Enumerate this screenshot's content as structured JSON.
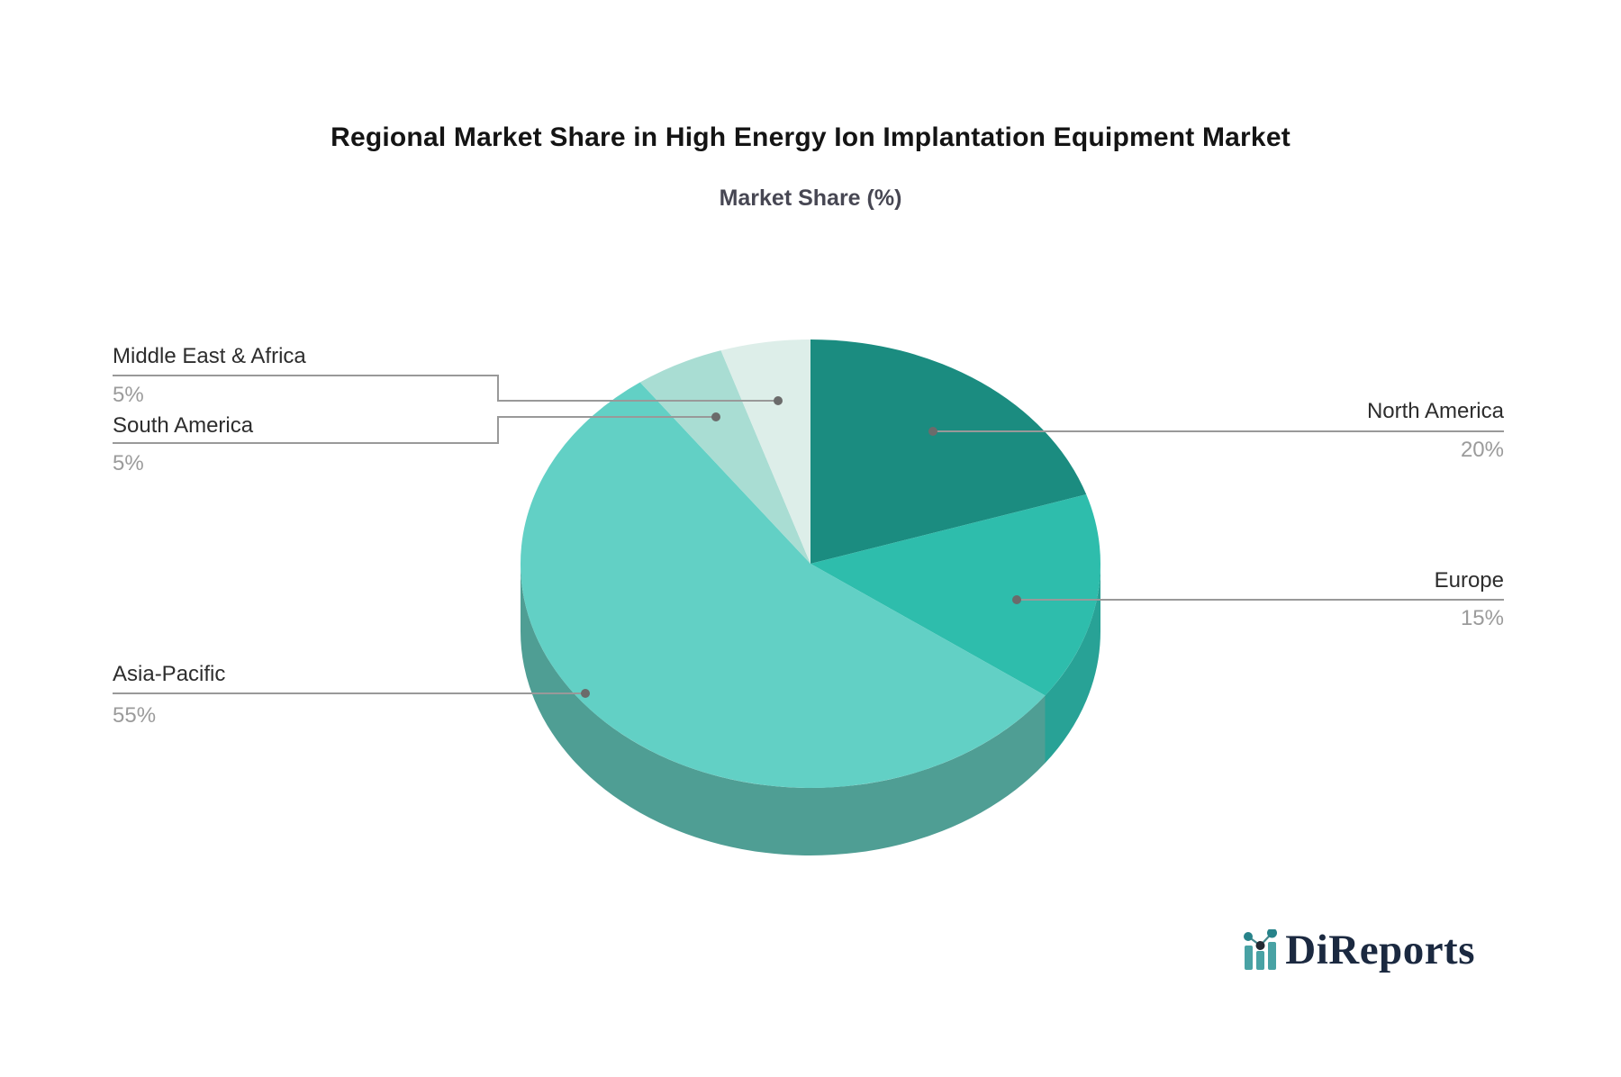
{
  "header": {
    "title": "Regional Market Share in High Energy Ion Implantation Equipment Market",
    "subtitle": "Market Share (%)"
  },
  "chart_data": {
    "type": "pie",
    "style": "3d",
    "title": "Regional Market Share in High Energy Ion Implantation Equipment Market",
    "subtitle": "Market Share (%)",
    "unit": "%",
    "start_angle_deg": 0,
    "direction": "clockwise",
    "legend": "none",
    "categories": [
      "North America",
      "Europe",
      "Asia-Pacific",
      "South America",
      "Middle East & Africa"
    ],
    "values": [
      20,
      15,
      55,
      5,
      5
    ],
    "slices": [
      {
        "label": "North America",
        "value": 20,
        "pct_label": "20%",
        "color": "#1b8c80",
        "side_color": "#177869"
      },
      {
        "label": "Europe",
        "value": 15,
        "pct_label": "15%",
        "color": "#2ebdac",
        "side_color": "#28a296"
      },
      {
        "label": "Asia-Pacific",
        "value": 55,
        "pct_label": "55%",
        "color": "#62d0c5",
        "side_color": "#4f9e94"
      },
      {
        "label": "South America",
        "value": 5,
        "pct_label": "5%",
        "color": "#a9ddd3",
        "side_color": "#8fbcb3"
      },
      {
        "label": "Middle East & Africa",
        "value": 5,
        "pct_label": "5%",
        "color": "#ddeee9",
        "side_color": "#bcc9c5"
      }
    ],
    "leader_line_color": "#999999",
    "leader_dot_color": "#6b6b6b",
    "label_color": "#2d2d2d",
    "value_color": "#9b9b9b"
  },
  "logo": {
    "text": "DiReports",
    "icon": "bar-chart-logo-icon",
    "text_color": "#1b2940",
    "bar_color": "#48a2a4",
    "dot_color_outer": "#27838a",
    "dot_color_middle": "#232a33"
  }
}
